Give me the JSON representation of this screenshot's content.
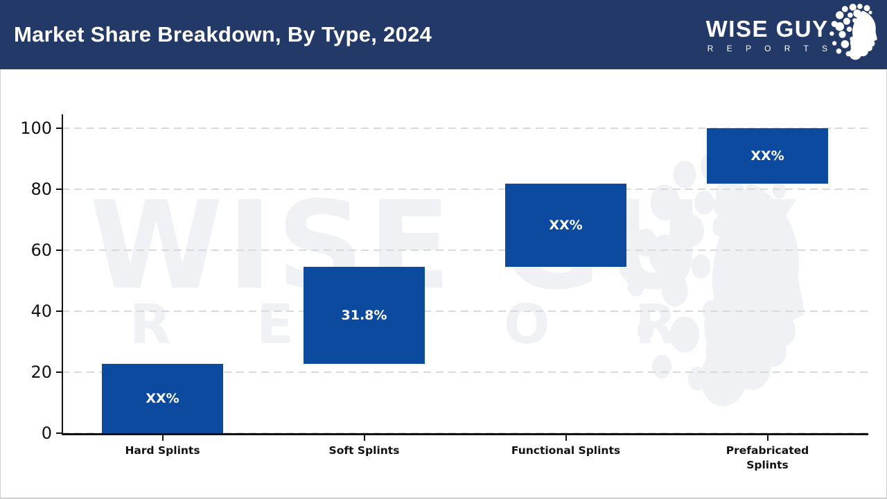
{
  "header": {
    "title": "Market Share Breakdown, By Type, 2024",
    "logo": {
      "name": "Wise Guy Reports",
      "line1": "WISE GUY",
      "line2": "R E P O R T S"
    }
  },
  "watermark": {
    "line1": "WISE GUY",
    "line2": "R E P O R T S"
  },
  "colors": {
    "header_bg": "#233a69",
    "bar_fill": "#0c4aa0",
    "bar_label": "#ffffff",
    "grid": "#d9d9d9",
    "axis": "#111111",
    "watermark": "#f0f1f4",
    "page_bg": "#ffffff",
    "border": "#cfcfcf"
  },
  "chart_data": {
    "type": "bar",
    "variant": "floating-waterfall",
    "title": "Market Share Breakdown, By Type, 2024",
    "categories": [
      "Hard Splints",
      "Soft Splints",
      "Functional Splints",
      "Prefabricated Splints"
    ],
    "bars": [
      {
        "category": "Hard Splints",
        "start": 0,
        "end": 22.7,
        "label": "XX%"
      },
      {
        "category": "Soft Splints",
        "start": 22.7,
        "end": 54.5,
        "label": "31.8%"
      },
      {
        "category": "Functional Splints",
        "start": 54.5,
        "end": 81.8,
        "label": "XX%"
      },
      {
        "category": "Prefabricated Splints",
        "start": 81.8,
        "end": 100,
        "label": "XX%"
      }
    ],
    "yticks": [
      0,
      20,
      40,
      60,
      80,
      100
    ],
    "ylim": [
      0,
      105
    ],
    "xlabel": "",
    "ylabel": "",
    "grid": "horizontal-dashed",
    "legend_position": "none"
  }
}
